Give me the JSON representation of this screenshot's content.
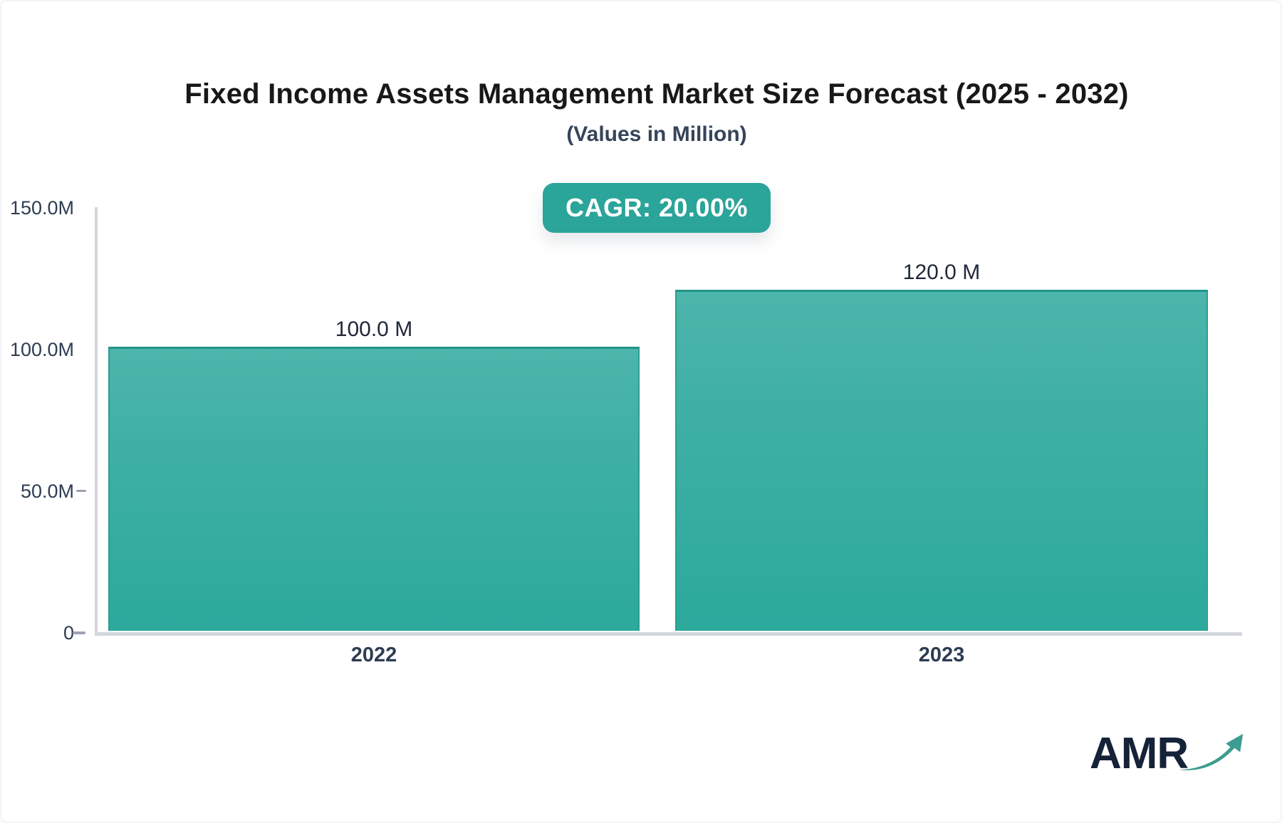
{
  "header": {
    "title": "Fixed Income Assets Management Market Size Forecast (2025 - 2032)",
    "subtitle": "(Values in Million)"
  },
  "badge": {
    "label": "CAGR: 20.00%",
    "background_color": "#2ba49a",
    "text_color": "#ffffff"
  },
  "chart_data": {
    "type": "bar",
    "title": "Fixed Income Assets Management Market Size Forecast (2025 - 2032)",
    "subtitle": "(Values in Million)",
    "categories": [
      "2022",
      "2023"
    ],
    "values": [
      100.0,
      120.0
    ],
    "value_labels": [
      "100.0 M",
      "120.0 M"
    ],
    "unit": "Million",
    "xlabel": "",
    "ylabel": "",
    "ylim": [
      0,
      150
    ],
    "ytick_labels": [
      "150.0M",
      "100.0M",
      "50.0M",
      "0"
    ],
    "ytick_values": [
      150,
      100,
      50,
      0
    ],
    "grid": "off",
    "legend": "none",
    "bar_color_top": "#4db5ab",
    "bar_color_bottom": "#2ba99b",
    "bar_border_color": "#23938a",
    "axis_color": "#d3d7dd"
  },
  "logo": {
    "text": "AMR",
    "arrow_icon": "trend-up-arrow-icon",
    "text_color": "#152238",
    "arrow_color": "#3d9c90"
  }
}
